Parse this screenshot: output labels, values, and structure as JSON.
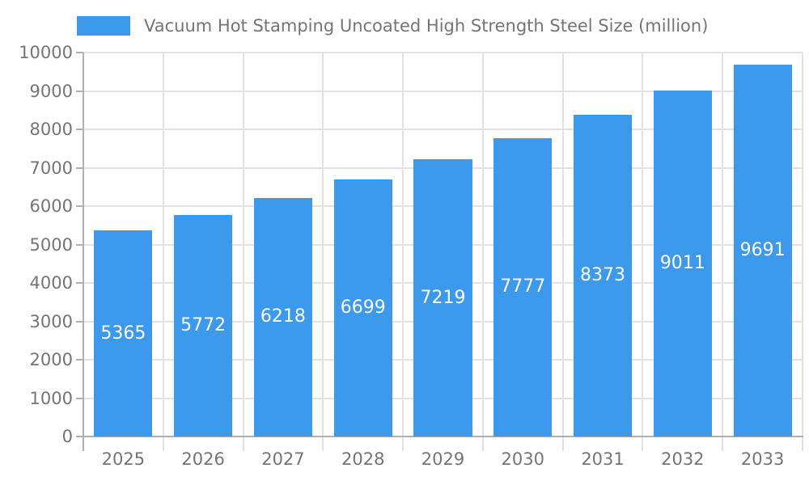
{
  "chart_data": {
    "type": "bar",
    "title": "Vacuum Hot Stamping Uncoated High Strength Steel Size (million)",
    "categories": [
      "2025",
      "2026",
      "2027",
      "2028",
      "2029",
      "2030",
      "2031",
      "2032",
      "2033"
    ],
    "values": [
      5365,
      5772,
      6218,
      6699,
      7219,
      7777,
      8373,
      9011,
      9691
    ],
    "xlabel": "",
    "ylabel": "",
    "ylim": [
      0,
      10000
    ],
    "ytick_step": 1000,
    "grid": true,
    "legend_position": "top",
    "colors": {
      "bar": "#3C99EC",
      "bar_value_text": "#FFFFFF",
      "axis_text": "#757575",
      "grid_line": "#E3E3E3",
      "axis_line": "#B0B0B0"
    }
  }
}
